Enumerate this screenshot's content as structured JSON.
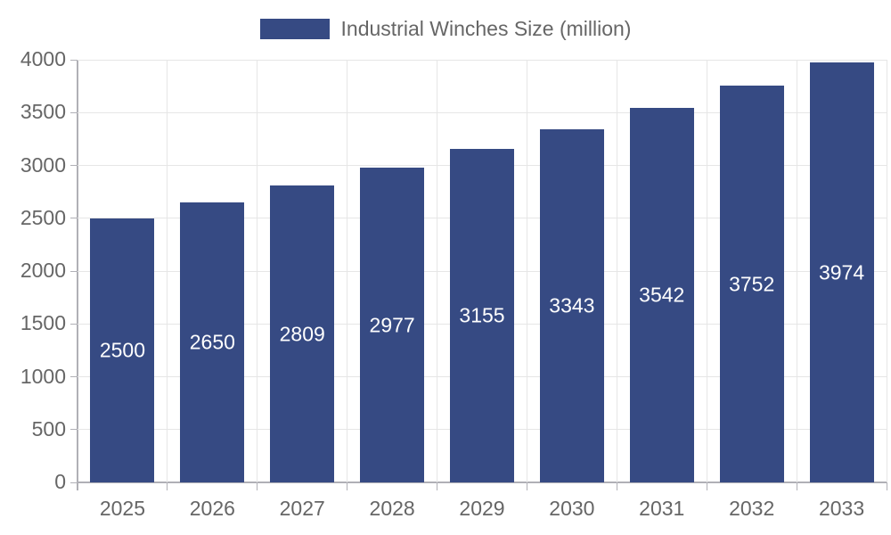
{
  "legend": {
    "label": "Industrial Winches Size (million)"
  },
  "chart_data": {
    "type": "bar",
    "title": "Industrial Winches Size (million)",
    "series_name": "Industrial Winches Size (million)",
    "categories": [
      "2025",
      "2026",
      "2027",
      "2028",
      "2029",
      "2030",
      "2031",
      "2032",
      "2033"
    ],
    "values": [
      2500,
      2650,
      2809,
      2977,
      3155,
      3343,
      3542,
      3752,
      3974
    ],
    "bar_labels_visible": true,
    "xlabel": "",
    "ylabel": "",
    "ylim": [
      0,
      4000
    ],
    "yticks": [
      0,
      500,
      1000,
      1500,
      2000,
      2500,
      3000,
      3500,
      4000
    ],
    "grid": true,
    "legend_position": "top-center",
    "colors": {
      "bar": "#364a83",
      "bar_label": "#ffffff",
      "grid_line": "#e6e6e6",
      "axis_line": "#b0b0b6",
      "tick_text": "#666666",
      "legend_text": "#666666",
      "background": "#ffffff"
    }
  }
}
